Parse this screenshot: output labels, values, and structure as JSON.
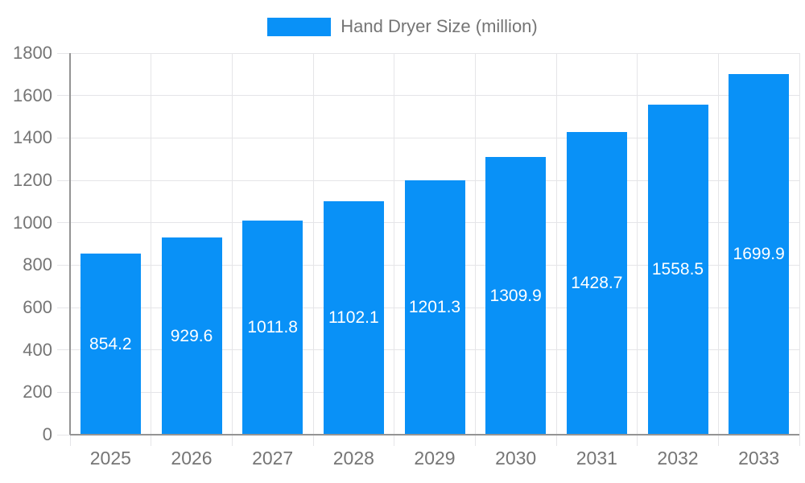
{
  "chart_data": {
    "type": "bar",
    "title": "Hand Dryer Size (million)",
    "categories": [
      "2025",
      "2026",
      "2027",
      "2028",
      "2029",
      "2030",
      "2031",
      "2032",
      "2033"
    ],
    "series": [
      {
        "name": "Hand Dryer Size (million)",
        "values": [
          854.2,
          929.6,
          1011.8,
          1102.1,
          1201.3,
          1309.9,
          1428.7,
          1558.5,
          1699.9
        ]
      }
    ],
    "value_labels": [
      "854.2",
      "929.6",
      "1011.8",
      "1102.1",
      "1201.3",
      "1309.9",
      "1428.7",
      "1558.5",
      "1699.9"
    ],
    "xlabel": "",
    "ylabel": "",
    "ylim": [
      0,
      1800
    ],
    "ytick_step": 200,
    "yticks": [
      0,
      200,
      400,
      600,
      800,
      1000,
      1200,
      1400,
      1600,
      1800
    ],
    "grid": true,
    "legend_position": "top-center",
    "colors": {
      "bar": "#0991F7",
      "axis_line": "#949494",
      "gridline": "#E5E5E8",
      "label_text": "#757575",
      "value_text": "#FFFFFF",
      "background": "#FFFFFF"
    }
  }
}
